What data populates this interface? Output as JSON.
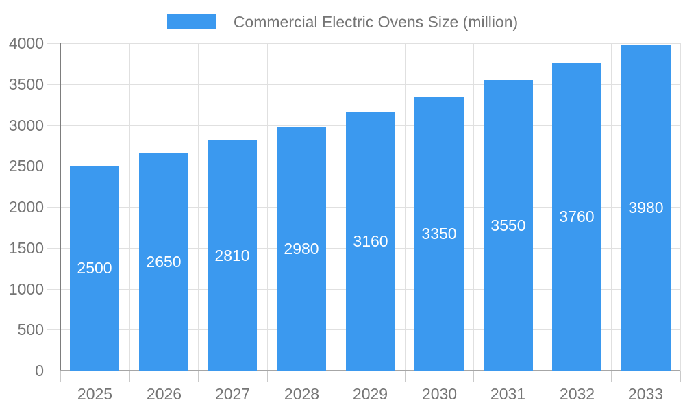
{
  "legend": {
    "label": "Commercial Electric Ovens Size (million)"
  },
  "colors": {
    "bar": "#3B99EF",
    "bar_label_text": "#ffffff",
    "axis_text": "#757575",
    "gridline": "#e0e0e0",
    "minor_tick": "#c9c9c9",
    "y_axis_line": "#7d7d7d",
    "baseline": "#a6a6a6",
    "background": "#ffffff"
  },
  "chart_data": {
    "type": "bar",
    "title": "",
    "categories": [
      "2025",
      "2026",
      "2027",
      "2028",
      "2029",
      "2030",
      "2031",
      "2032",
      "2033"
    ],
    "series": [
      {
        "name": "Commercial Electric Ovens Size (million)",
        "values": [
          2500,
          2650,
          2810,
          2980,
          3160,
          3350,
          3550,
          3760,
          3980
        ]
      }
    ],
    "xlabel": "",
    "ylabel": "",
    "ylim": [
      0,
      4000
    ],
    "yticks": [
      0,
      500,
      1000,
      1500,
      2000,
      2500,
      3000,
      3500,
      4000
    ],
    "grid": true,
    "legend_position": "top",
    "data_labels_position": "inside-center"
  }
}
